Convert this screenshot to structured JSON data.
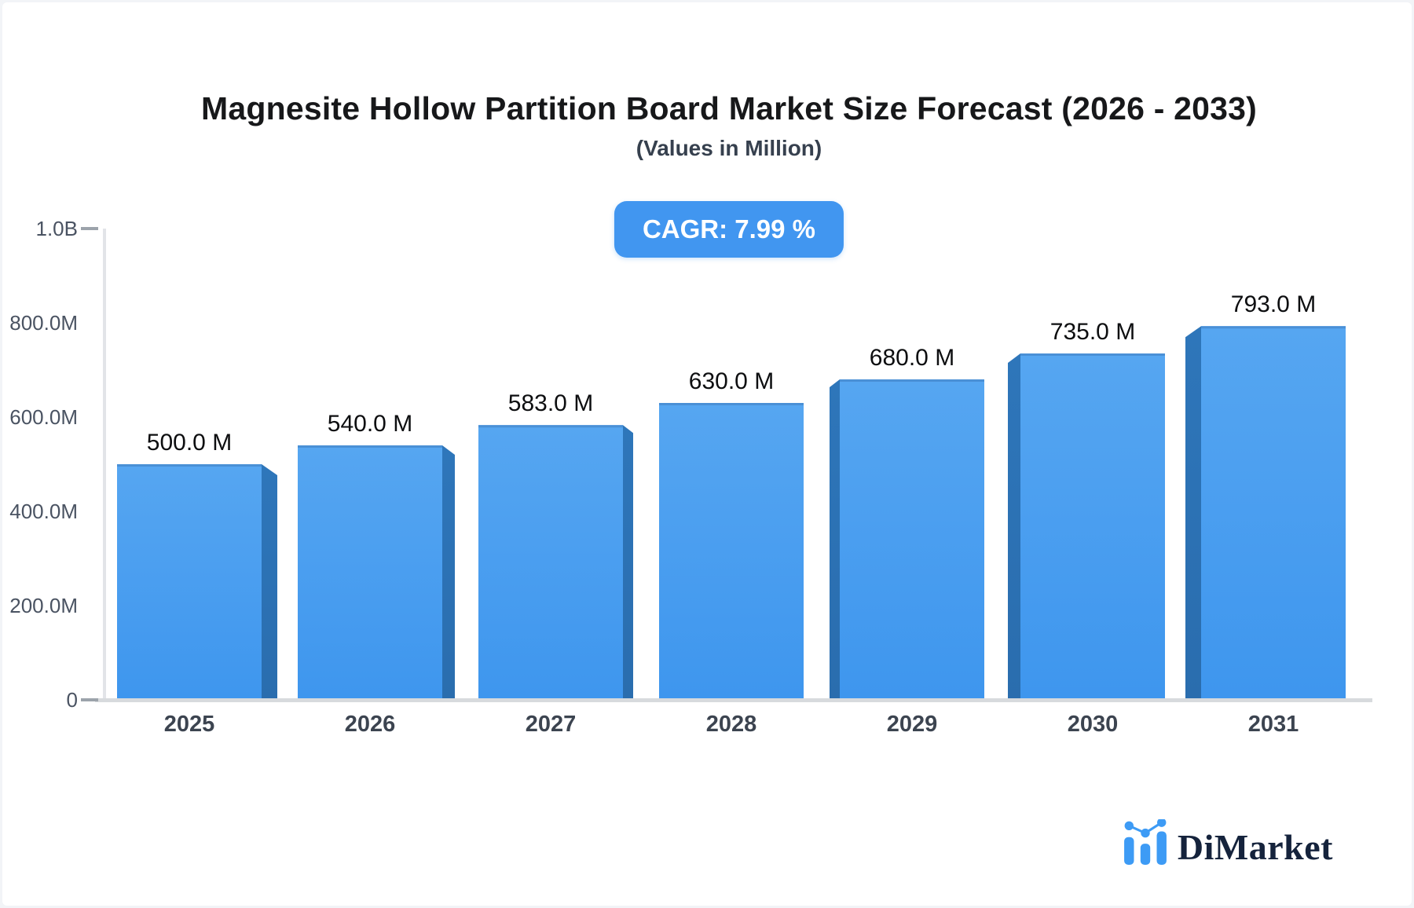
{
  "header": {
    "title": "Magnesite Hollow Partition Board Market Size Forecast (2026 - 2033)",
    "subtitle": "(Values in Million)"
  },
  "cagr_badge": {
    "label": "CAGR: 7.99 %",
    "background": "#4196f0",
    "text_color": "#ffffff"
  },
  "chart_data": {
    "type": "bar",
    "title": "Magnesite Hollow Partition Board Market Size Forecast (2026 - 2033)",
    "subtitle": "(Values in Million)",
    "categories": [
      "2025",
      "2026",
      "2027",
      "2028",
      "2029",
      "2030",
      "2031"
    ],
    "values": [
      500.0,
      540.0,
      583.0,
      630.0,
      680.0,
      735.0,
      793.0
    ],
    "unit": "Million",
    "value_labels": [
      "500.0 M",
      "540.0 M",
      "583.0 M",
      "630.0 M",
      "680.0 M",
      "735.0 M",
      "793.0 M"
    ],
    "xlabel": "",
    "ylabel": "",
    "y_axis": {
      "min": 0,
      "max": 1000,
      "ticks": [
        {
          "value": 0,
          "label": "0",
          "dash": true
        },
        {
          "value": 200,
          "label": "200.0M",
          "dash": false
        },
        {
          "value": 400,
          "label": "400.0M",
          "dash": false
        },
        {
          "value": 600,
          "label": "600.0M",
          "dash": false
        },
        {
          "value": 800,
          "label": "800.0M",
          "dash": false
        },
        {
          "value": 1000,
          "label": "1.0B",
          "dash": true
        }
      ]
    },
    "grid": false,
    "legend": false,
    "style_3d": true,
    "colors": {
      "bar_front_top": "#56a6f1",
      "bar_front_bottom": "#3e96ee",
      "bar_top_edge": "#4a90d6",
      "bar_side": "#2e76ba",
      "bar_side_dark": "#2a6dae",
      "axis_line": "#e2e4e8",
      "baseline": "#d7dadd",
      "tick": "#9ca3ab",
      "y_label": "#4a5362",
      "x_label": "#3c4450",
      "value_label": "#0d0e10"
    }
  },
  "footer": {
    "brand": "DiMarket"
  }
}
